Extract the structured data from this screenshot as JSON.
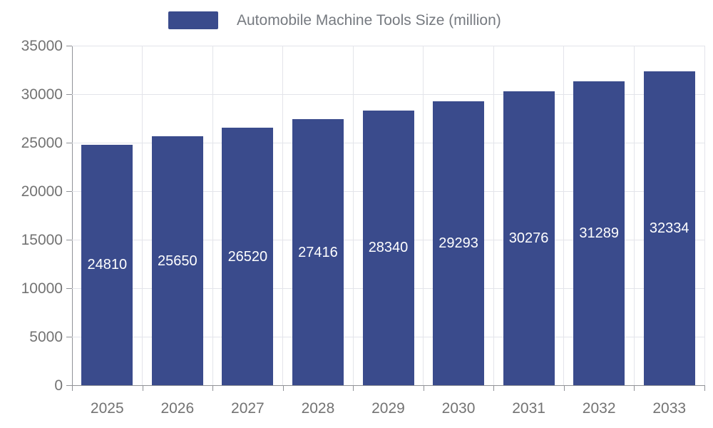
{
  "legend": {
    "label": "Automobile Machine Tools Size (million)"
  },
  "chart_data": {
    "type": "bar",
    "title": "Automobile Machine Tools Size (million)",
    "categories": [
      "2025",
      "2026",
      "2027",
      "2028",
      "2029",
      "2030",
      "2031",
      "2032",
      "2033"
    ],
    "values": [
      24810,
      25650,
      26520,
      27416,
      28340,
      29293,
      30276,
      31289,
      32334
    ],
    "xlabel": "",
    "ylabel": "",
    "ylim": [
      0,
      35000
    ],
    "ytick_step": 5000,
    "ytick_labels": [
      "0",
      "5000",
      "10000",
      "15000",
      "20000",
      "25000",
      "30000",
      "35000"
    ],
    "grid": true,
    "legend_position": "top",
    "value_labels_shown": true,
    "colors": {
      "bar": "#3A4B8C",
      "grid": "#e3e4ea",
      "axis": "#909297",
      "tick_label": "#737373",
      "legend_text": "#767a80",
      "value_label": "#ffffff",
      "background": "#ffffff"
    }
  }
}
